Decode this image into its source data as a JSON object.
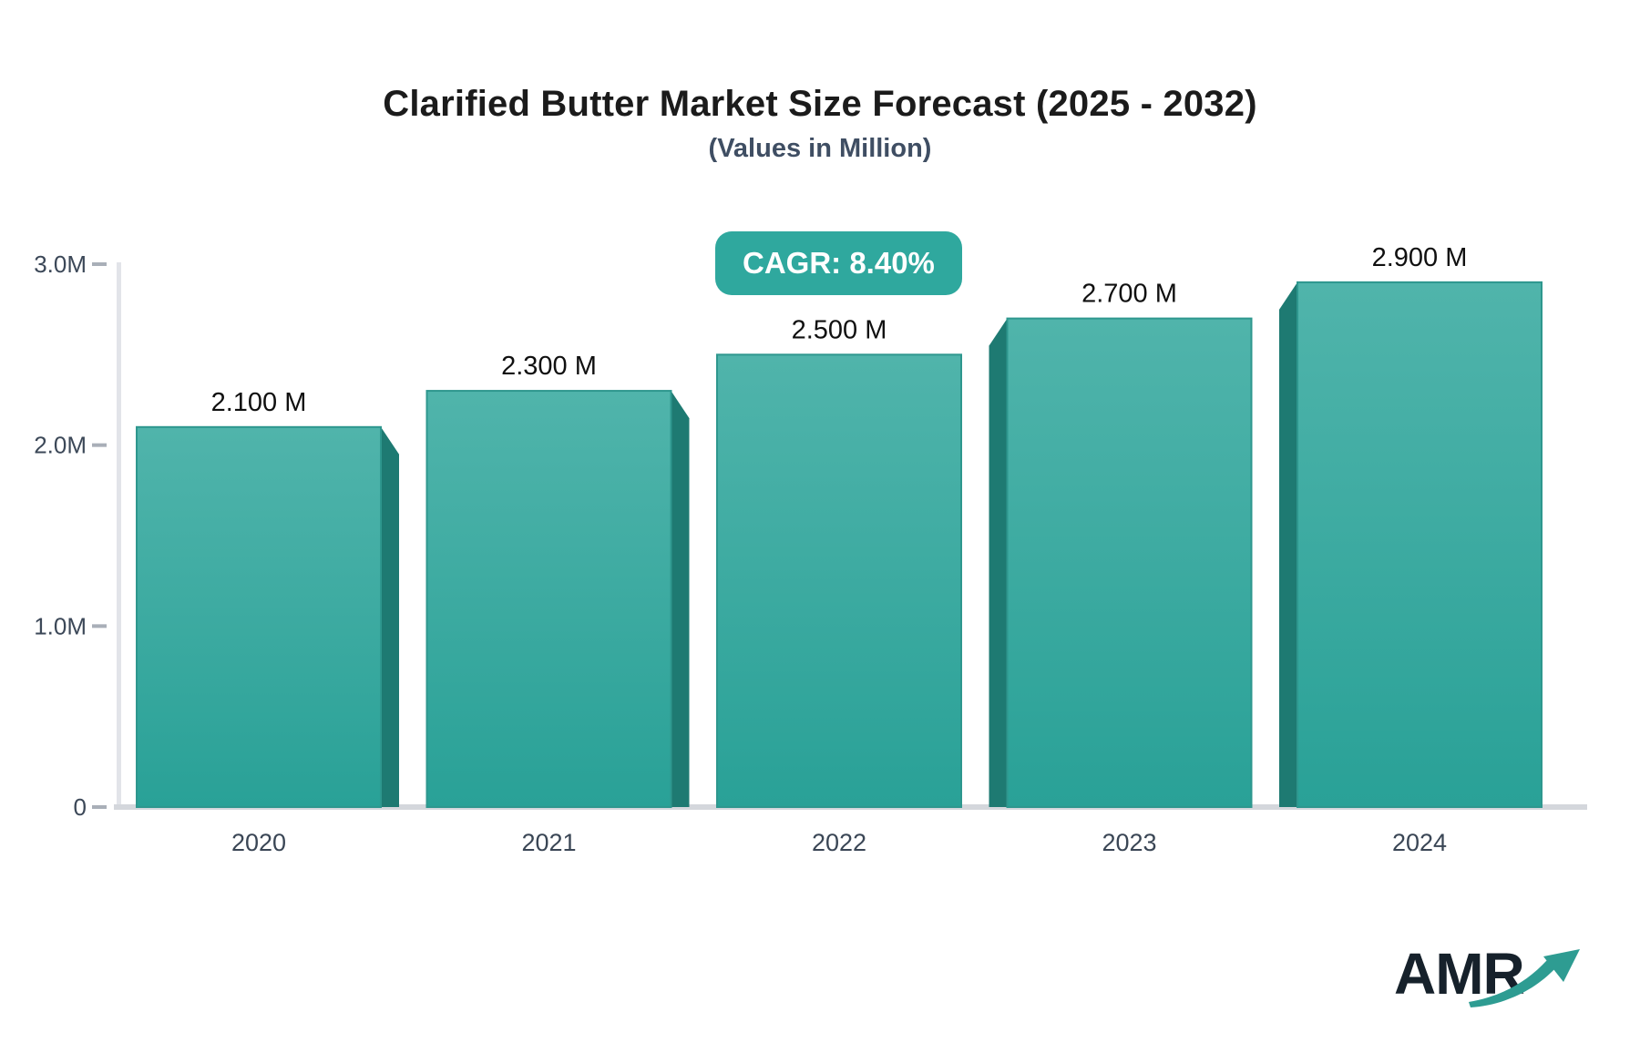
{
  "header": {
    "title": "Clarified Butter Market Size Forecast (2025 - 2032)",
    "subtitle": "(Values in Million)"
  },
  "badge": {
    "label": "CAGR: 8.40%",
    "bg_color": "#2fa89e",
    "text_color": "#ffffff"
  },
  "chart_data": {
    "type": "bar",
    "title": "Clarified Butter Market Size Forecast (2025 - 2032)",
    "subtitle": "(Values in Million)",
    "unit": "Million",
    "cagr": "8.40%",
    "categories": [
      "2020",
      "2021",
      "2022",
      "2023",
      "2024"
    ],
    "values": [
      2.1,
      2.3,
      2.5,
      2.7,
      2.9
    ],
    "value_labels": [
      "2.100 M",
      "2.300 M",
      "2.500 M",
      "2.700 M",
      "2.900 M"
    ],
    "ylim": [
      0,
      3.0
    ],
    "yticks": [
      {
        "value": 0,
        "label": "0"
      },
      {
        "value": 1.0,
        "label": "1.0M"
      },
      {
        "value": 2.0,
        "label": "2.0M"
      },
      {
        "value": 3.0,
        "label": "3.0M"
      }
    ],
    "grid": false,
    "legend": "none",
    "colors": {
      "bar_top": "#50b4ab",
      "bar_bottom": "#29a197",
      "bar_outline": "#2e978e",
      "bar_side_3d": "#1e7a72",
      "axis_line": "#e2e4e9",
      "baseline": "#d4d7dc",
      "tick_dash": "#a9afb8",
      "tick_label": "#3c4858",
      "x_label": "#3a4655",
      "value_label": "#101010"
    },
    "shadow_sides": [
      "right",
      "right",
      "none",
      "left",
      "left"
    ]
  },
  "logo": {
    "text": "AMR"
  }
}
